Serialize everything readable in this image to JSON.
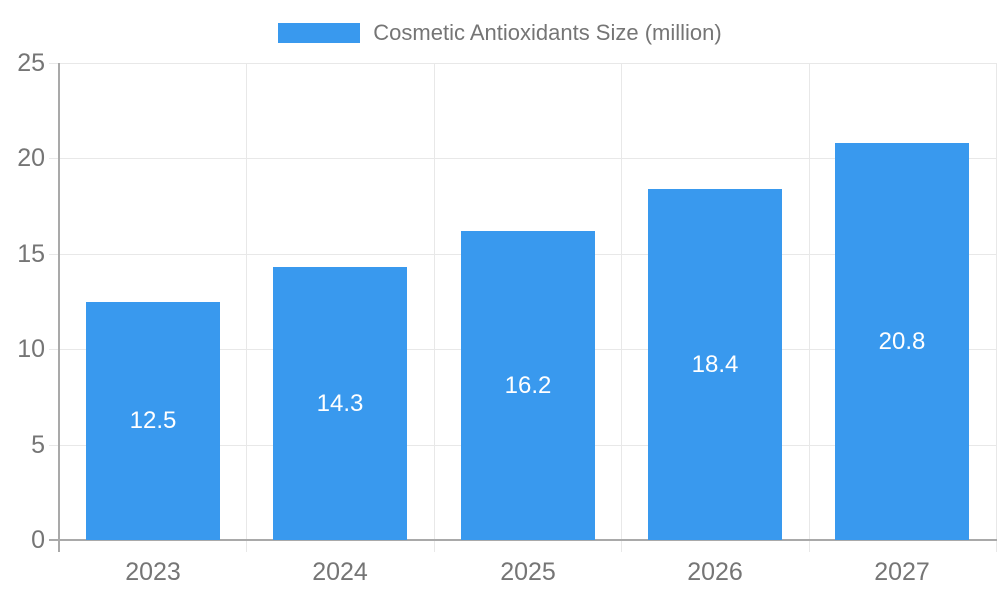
{
  "legend": {
    "label": "Cosmetic Antioxidants Size (million)"
  },
  "chart_data": {
    "type": "bar",
    "title": "Cosmetic Antioxidants Size (million)",
    "categories": [
      "2023",
      "2024",
      "2025",
      "2026",
      "2027"
    ],
    "values": [
      12.5,
      14.3,
      16.2,
      18.4,
      20.8
    ],
    "value_labels": [
      "12.5",
      "14.3",
      "16.2",
      "18.4",
      "20.8"
    ],
    "series": [
      {
        "name": "Cosmetic Antioxidants Size (million)",
        "values": [
          12.5,
          14.3,
          16.2,
          18.4,
          20.8
        ]
      }
    ],
    "xlabel": "",
    "ylabel": "",
    "ylim": [
      0,
      25
    ],
    "yticks": [
      0,
      5,
      10,
      15,
      20,
      25
    ],
    "grid": true,
    "legend_position": "top-center",
    "value_labels_inside_bars": true,
    "colors": {
      "bar": "#3999ee",
      "value_label": "#ffffff",
      "axis_text": "#757575",
      "grid": "#e8e8e8",
      "axis_line": "#a9a9a9",
      "background": "#ffffff"
    }
  }
}
